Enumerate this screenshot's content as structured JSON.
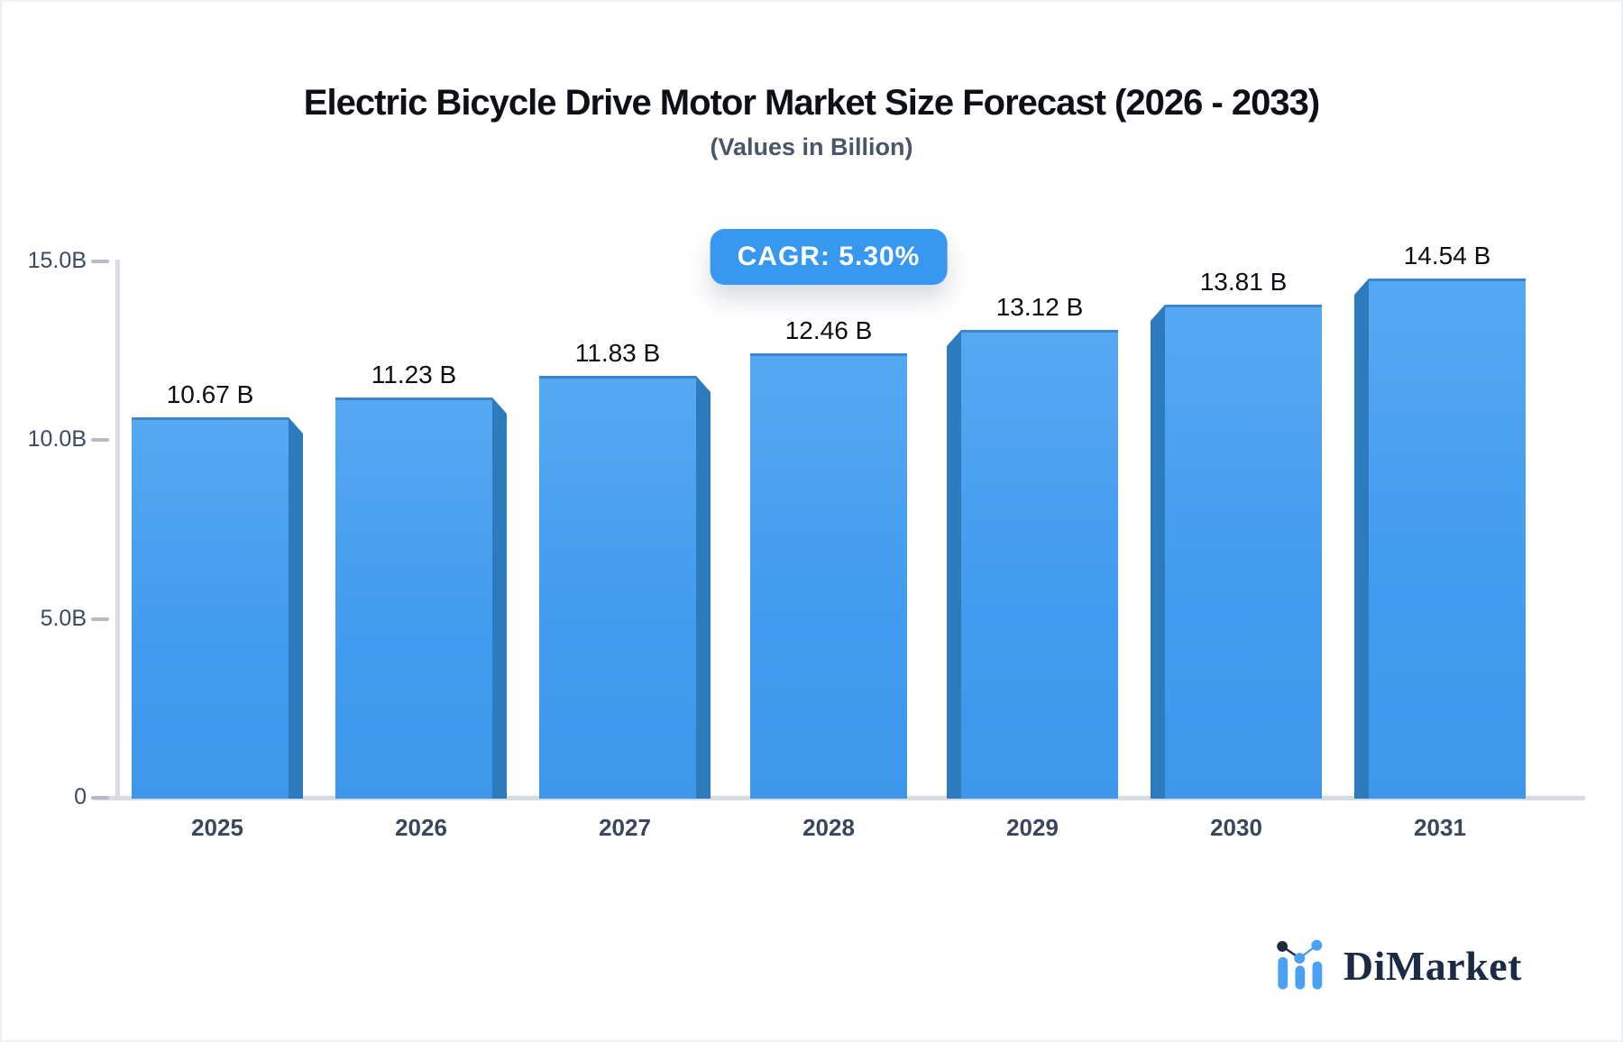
{
  "chart_data": {
    "type": "bar",
    "title": "Electric Bicycle Drive Motor Market Size Forecast (2026 - 2033)",
    "subtitle": "(Values in Billion)",
    "annotation": "CAGR: 5.30%",
    "categories": [
      "2025",
      "2026",
      "2027",
      "2028",
      "2029",
      "2030",
      "2031"
    ],
    "values": [
      10.67,
      11.23,
      11.83,
      12.46,
      13.12,
      13.81,
      14.54
    ],
    "value_labels": [
      "10.67 B",
      "11.23 B",
      "11.83 B",
      "12.46 B",
      "13.12 B",
      "13.81 B",
      "14.54 B"
    ],
    "xlabel": "",
    "ylabel": "",
    "ylim": [
      0,
      15
    ],
    "yticks": [
      {
        "value": 15,
        "label": "15.0B"
      },
      {
        "value": 10,
        "label": "10.0B"
      },
      {
        "value": 5,
        "label": "5.0B"
      },
      {
        "value": 0,
        "label": "0"
      }
    ],
    "grid": false,
    "legend": false,
    "bar_style": "3d-extruded"
  },
  "logo": {
    "text": "DiMarket",
    "icon": "bar-chart-with-dots-icon"
  },
  "colors": {
    "bar_fill_top": "#56a8f2",
    "bar_fill_bottom": "#3f97ea",
    "bar_side": "#2d7abd",
    "bar_top_edge": "#3a87d0",
    "badge_bg": "#3898ef",
    "badge_text": "#ffffff",
    "axis_line": "#d8dce2",
    "tick_mark": "#b6bcc6",
    "axis_text": "#3c4a61",
    "value_text": "#0b0d12",
    "title_text": "#0e1018",
    "subtitle_text": "#4a5568",
    "logo_text": "#1c2b45",
    "logo_blue": "#4aa0f2"
  }
}
